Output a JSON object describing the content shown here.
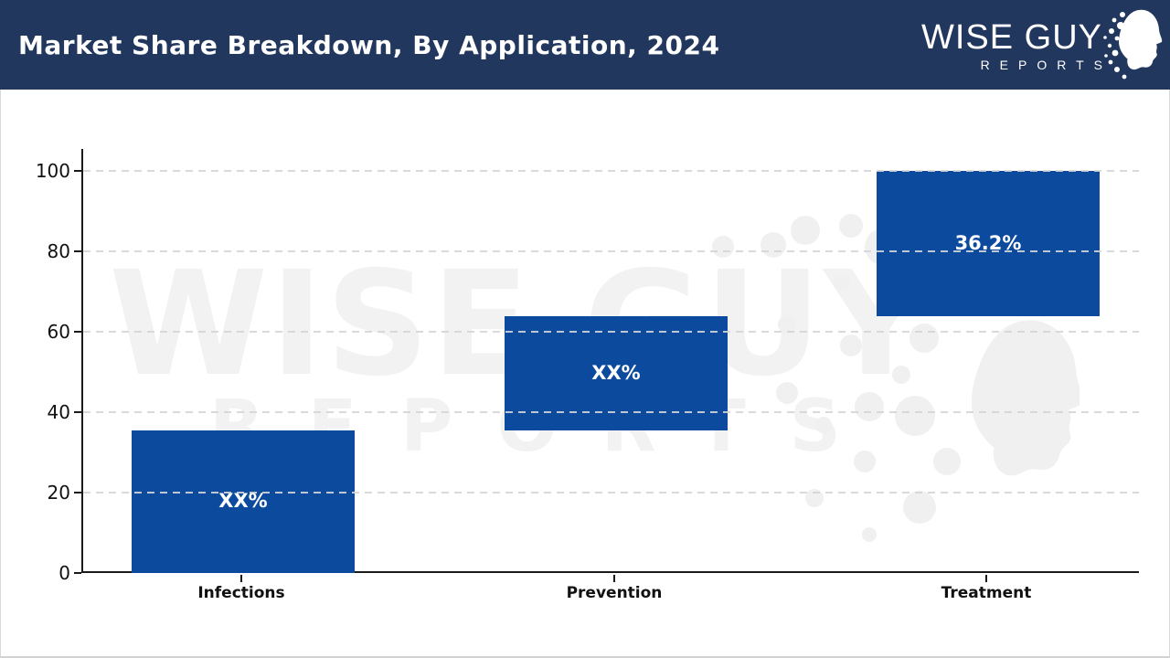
{
  "header": {
    "title": "Market Share Breakdown, By Application, 2024",
    "logo": {
      "line1": "WISE GUY",
      "line2": "REPORTS"
    }
  },
  "watermark": {
    "line1": "WISE GUY",
    "line2": "REPORTS"
  },
  "chart_data": {
    "type": "bar",
    "subtype": "waterfall",
    "title": "Market Share Breakdown, By Application, 2024",
    "categories": [
      "Infections",
      "Prevention",
      "Treatment"
    ],
    "segments": [
      {
        "category": "Infections",
        "start": 0,
        "end": 35.5,
        "label": "XX%"
      },
      {
        "category": "Prevention",
        "start": 35.5,
        "end": 63.8,
        "label": "XX%"
      },
      {
        "category": "Treatment",
        "start": 63.8,
        "end": 100,
        "label": "36.2%"
      }
    ],
    "yticks": [
      0,
      20,
      40,
      60,
      80,
      100
    ],
    "ylim": [
      0,
      105
    ],
    "xlabel": "",
    "ylabel": "",
    "grid": "horizontal-dashed",
    "legend": "none",
    "bar_color": "#0c4a9e",
    "bar_label_color": "#ffffff"
  },
  "colors": {
    "header_bg": "#21375e",
    "bar": "#0c4a9e",
    "watermark": "#f0f0f0",
    "grid": "#d5d5d5",
    "axis": "#1a1a1a"
  }
}
